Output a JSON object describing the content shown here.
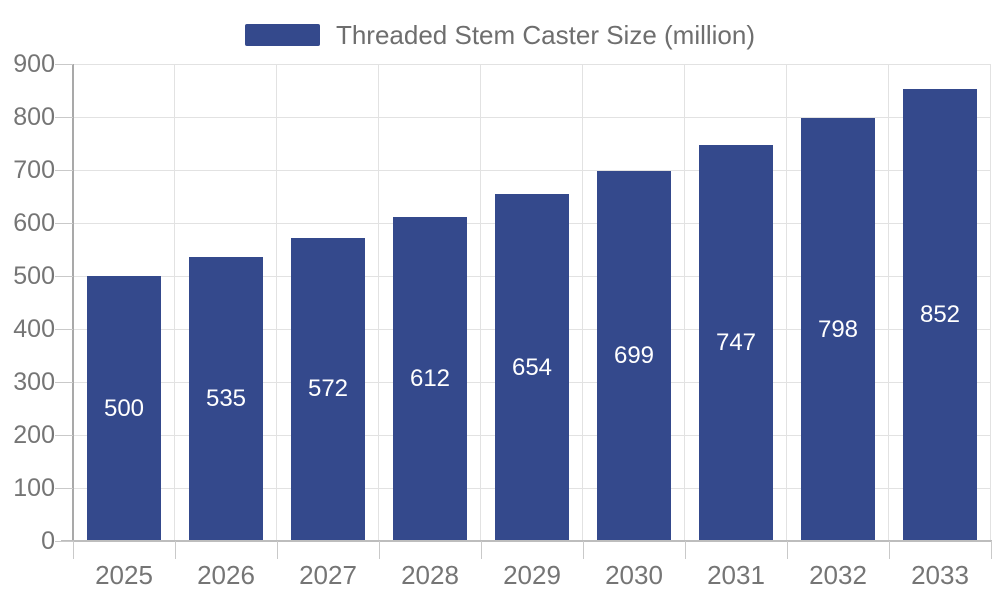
{
  "chart_data": {
    "type": "bar",
    "title": "Threaded Stem Caster Size (million)",
    "legend": {
      "label": "Threaded Stem Caster Size (million)",
      "position": "top-center"
    },
    "categories": [
      "2025",
      "2026",
      "2027",
      "2028",
      "2029",
      "2030",
      "2031",
      "2032",
      "2033"
    ],
    "series": [
      {
        "name": "Threaded Stem Caster Size (million)",
        "values": [
          500,
          535,
          572,
          612,
          654,
          699,
          747,
          798,
          852
        ]
      }
    ],
    "value_labels": {
      "position": "inside-center",
      "color": "#ffffff"
    },
    "xlabel": "",
    "ylabel": "",
    "ylim": [
      0,
      900
    ],
    "yticks": [
      0,
      100,
      200,
      300,
      400,
      500,
      600,
      700,
      800,
      900
    ],
    "grid": true,
    "colors": {
      "bar": "#34498c",
      "grid": "#e2e2e2",
      "axis": "#b3b3b3",
      "tick": "#c9c9c9",
      "tick_label": "#757575",
      "legend_text": "#6e6e6e",
      "value_label": "#ffffff",
      "background": "#ffffff"
    }
  }
}
